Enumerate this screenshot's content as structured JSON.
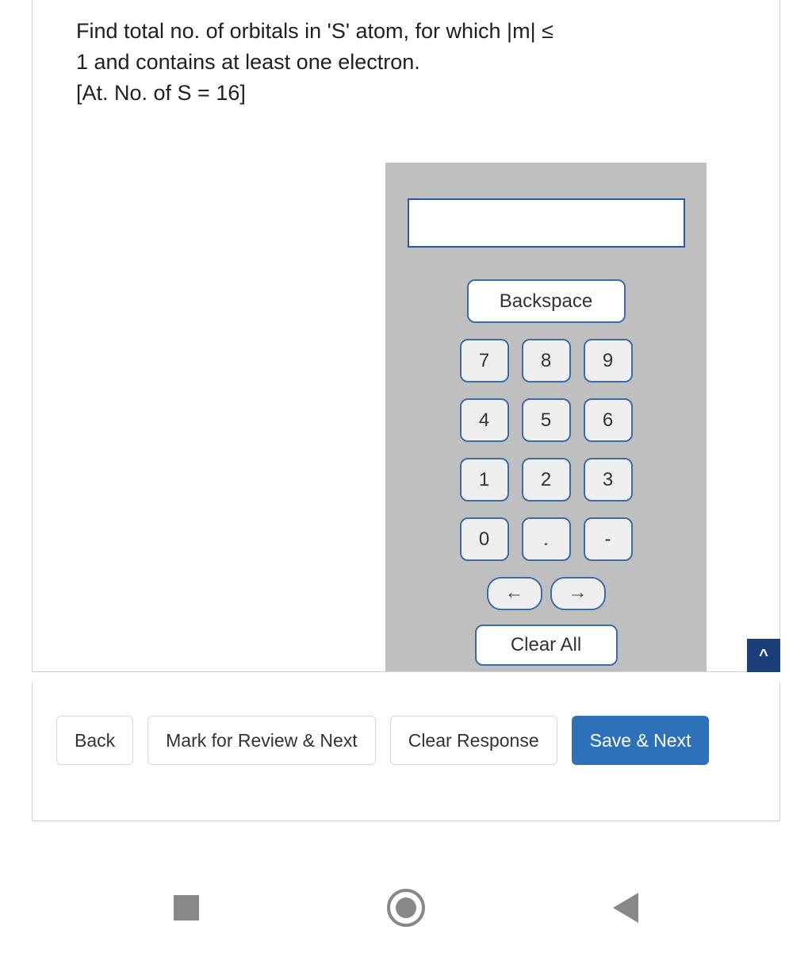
{
  "question": {
    "line1": "Find total no. of orbitals in 'S' atom, for which |m| ≤",
    "line2": "1 and contains at least one electron.",
    "line3": "[At. No. of S = 16]"
  },
  "keypad": {
    "answer_value": "",
    "backspace": "Backspace",
    "rows": [
      [
        "7",
        "8",
        "9"
      ],
      [
        "4",
        "5",
        "6"
      ],
      [
        "1",
        "2",
        "3"
      ],
      [
        "0",
        ".",
        "-"
      ]
    ],
    "arrow_left": "←",
    "arrow_right": "→",
    "clear_all": "Clear All",
    "background_color": "#bfbfbf",
    "key_border_color": "#3a6ea8",
    "input_border_color": "#2a5a9e"
  },
  "scroll_indicator": "^",
  "footer": {
    "back": "Back",
    "mark_review": "Mark for Review & Next",
    "clear_response": "Clear Response",
    "save_next": "Save & Next",
    "primary_bg": "#2d71b8"
  },
  "colors": {
    "page_bg": "#ffffff",
    "text": "#202124",
    "border": "#d0d0d0",
    "nav_icon": "#888888"
  }
}
